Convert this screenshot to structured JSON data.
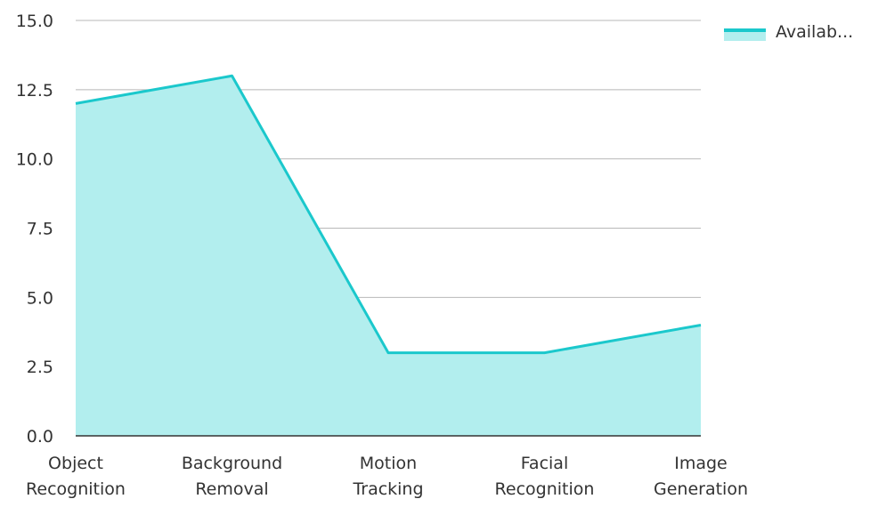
{
  "chart_data": {
    "type": "area",
    "categories": [
      [
        "Object",
        "Recognition"
      ],
      [
        "Background",
        "Removal"
      ],
      [
        "Motion",
        "Tracking"
      ],
      [
        "Facial",
        "Recognition"
      ],
      [
        "Image",
        "Generation"
      ]
    ],
    "series": [
      {
        "name": "Availab...",
        "values": [
          12,
          13,
          3,
          3,
          4
        ]
      }
    ],
    "yticks": [
      "0.0",
      "2.5",
      "5.0",
      "7.5",
      "10.0",
      "12.5",
      "15.0"
    ],
    "ylim": [
      0,
      15
    ],
    "grid": true,
    "legend_position": "top-right",
    "colors": {
      "line": "#1BC8CC",
      "fill": "#B2EEEE",
      "grid": "#B8B8B8",
      "axis": "#333333",
      "text": "#333333"
    }
  }
}
